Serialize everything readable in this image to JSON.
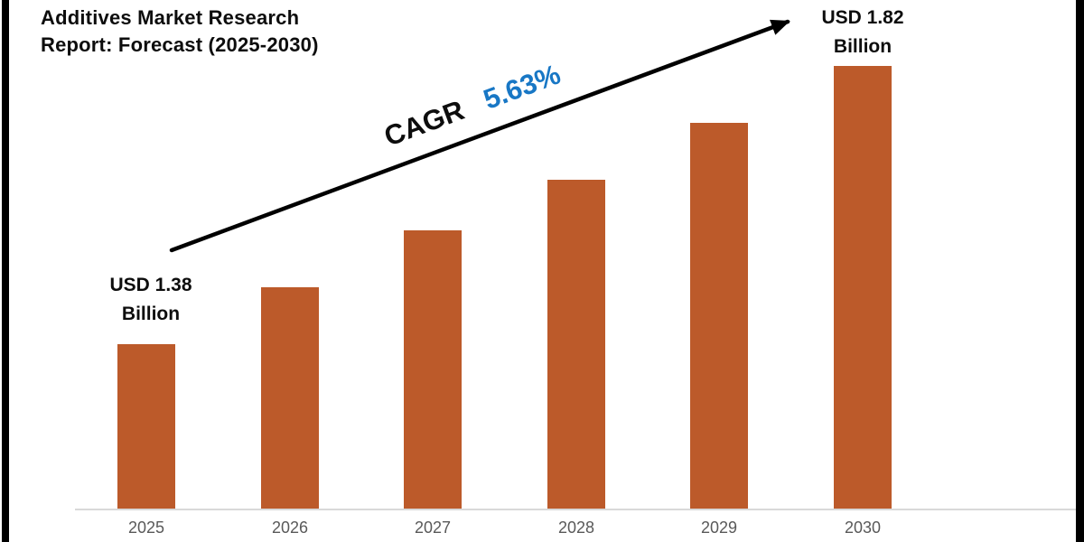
{
  "title": {
    "line1": "Additives Market Research",
    "line2": "Report: Forecast (2025-2030)"
  },
  "annotations": {
    "cagr_prefix": "CAGR",
    "cagr_value": "5.63%",
    "start_line1": "USD 1.38",
    "start_line2": "Billion",
    "end_line1": "USD 1.82",
    "end_line2": "Billion"
  },
  "colors": {
    "bar": "#BC5A2A",
    "cagr_blue": "#1877C5",
    "axis_line": "#D9D9D9",
    "tick_label": "#595959",
    "text": "#0d0d0d",
    "edge_stripe": "#000000"
  },
  "chart_data": {
    "type": "bar",
    "title": "Additives Market Research Report: Forecast (2025-2030)",
    "unit": "USD Billion",
    "categories": [
      "2025",
      "2026",
      "2027",
      "2028",
      "2029",
      "2030"
    ],
    "values": [
      1.38,
      1.47,
      1.56,
      1.64,
      1.73,
      1.82
    ],
    "cagr": "5.63%",
    "annotations": [
      {
        "target": "2025",
        "text": "USD 1.38 Billion"
      },
      {
        "target": "2030",
        "text": "USD 1.82 Billion"
      },
      {
        "target": "trend-arrow",
        "text": "CAGR 5.63%"
      }
    ],
    "xlabel": "",
    "ylabel": "",
    "ylim": [
      1.12,
      1.82
    ],
    "grid": false,
    "legend": false,
    "bar_color": "#BC5A2A"
  }
}
